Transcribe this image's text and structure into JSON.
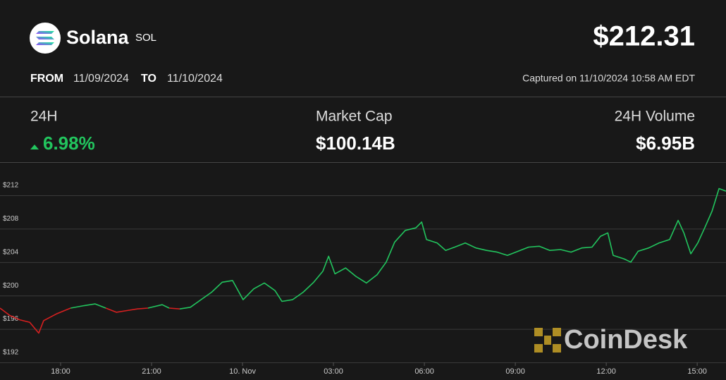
{
  "header": {
    "name": "Solana",
    "symbol": "SOL",
    "price": "$212.31",
    "from_label": "FROM",
    "from_date": "11/09/2024",
    "to_label": "TO",
    "to_date": "11/10/2024",
    "captured": "Captured on 11/10/2024 10:58 AM EDT"
  },
  "stats": [
    {
      "label": "24H",
      "value": "6.98%"
    },
    {
      "label": "Market Cap",
      "value": "$100.14B"
    },
    {
      "label": "24H Volume",
      "value": "$6.95B"
    }
  ],
  "watermark": "CoinDesk",
  "chart_data": {
    "type": "line",
    "color": "#22c55e",
    "down_color": "#d62020",
    "grid": true,
    "x": [
      16,
      16.33,
      16.65,
      16.98,
      17.28,
      17.44,
      17.86,
      18.33,
      18.79,
      19.14,
      19.49,
      19.84,
      20.19,
      20.53,
      20.88,
      21.35,
      21.58,
      21.93,
      22.28,
      22.63,
      22.98,
      23.33,
      23.67,
      24.02,
      24.37,
      24.72,
      25.07,
      25.3,
      25.65,
      26,
      26.35,
      26.65,
      26.84,
      27.05,
      27.4,
      27.74,
      28.09,
      28.44,
      28.74,
      29.02,
      29.37,
      29.72,
      29.91,
      30.07,
      30.42,
      30.7,
      31,
      31.35,
      31.7,
      32.05,
      32.4,
      32.74,
      33.09,
      33.44,
      33.79,
      34.14,
      34.49,
      34.84,
      35.19,
      35.53,
      35.81,
      36.05,
      36.23,
      36.58,
      36.81,
      37.05,
      37.4,
      37.74,
      38.09,
      38.37,
      38.56,
      38.79,
      39.02,
      39.26,
      39.49,
      39.72,
      39.95
    ],
    "values": [
      198.5,
      197.6,
      197.1,
      196.8,
      195.5,
      197.0,
      197.8,
      198.5,
      198.8,
      199.0,
      198.5,
      198.0,
      198.2,
      198.4,
      198.5,
      198.9,
      198.5,
      198.4,
      198.6,
      199.5,
      200.4,
      201.6,
      201.8,
      199.5,
      200.8,
      201.5,
      200.6,
      199.3,
      199.5,
      200.4,
      201.6,
      202.9,
      204.7,
      202.6,
      203.3,
      202.3,
      201.5,
      202.5,
      204.0,
      206.4,
      207.8,
      208.1,
      208.8,
      206.7,
      206.3,
      205.4,
      205.8,
      206.3,
      205.7,
      205.4,
      205.2,
      204.8,
      205.3,
      205.8,
      205.9,
      205.4,
      205.5,
      205.2,
      205.7,
      205.8,
      207.1,
      207.5,
      204.8,
      204.4,
      204.0,
      205.3,
      205.7,
      206.3,
      206.7,
      209.0,
      207.5,
      205.0,
      206.3,
      208.2,
      210.1,
      212.8,
      212.5
    ],
    "xlim": [
      16,
      39.95
    ],
    "xticks": [
      {
        "value": 18,
        "label": "18:00"
      },
      {
        "value": 21,
        "label": "21:00"
      },
      {
        "value": 24,
        "label": "10. Nov"
      },
      {
        "value": 27,
        "label": "03:00"
      },
      {
        "value": 30,
        "label": "06:00"
      },
      {
        "value": 33,
        "label": "09:00"
      },
      {
        "value": 36,
        "label": "12:00"
      },
      {
        "value": 39,
        "label": "15:00"
      }
    ],
    "ylim": [
      192,
      215.8
    ],
    "yticks": [
      {
        "value": 192,
        "label": "$192"
      },
      {
        "value": 196,
        "label": "$196"
      },
      {
        "value": 200,
        "label": "$200"
      },
      {
        "value": 204,
        "label": "$204"
      },
      {
        "value": 208,
        "label": "$208"
      },
      {
        "value": 212,
        "label": "$212"
      }
    ]
  }
}
